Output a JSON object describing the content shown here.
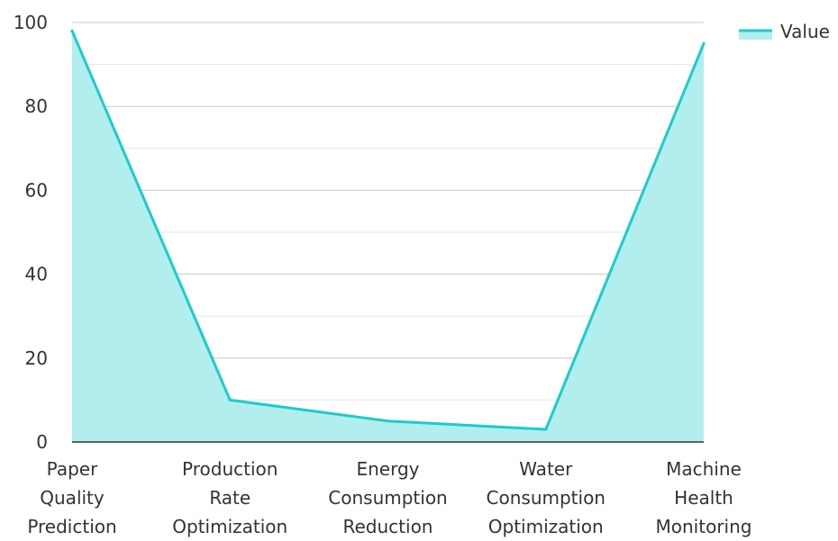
{
  "chart_data": {
    "type": "area",
    "title": "",
    "xlabel": "",
    "ylabel": "",
    "categories": [
      [
        "Paper",
        "Quality",
        "Prediction"
      ],
      [
        "Production",
        "Rate",
        "Optimization"
      ],
      [
        "Energy",
        "Consumption",
        "Reduction"
      ],
      [
        "Water",
        "Consumption",
        "Optimization"
      ],
      [
        "Machine",
        "Health",
        "Monitoring"
      ]
    ],
    "series": [
      {
        "name": "Value",
        "values": [
          98,
          10,
          5,
          3,
          95
        ],
        "color": "#1ecbcb",
        "fill": "#b2eeee"
      }
    ],
    "ylim": [
      0,
      100
    ],
    "yticks": [
      0,
      20,
      40,
      60,
      80,
      100
    ],
    "grid": true,
    "legend": "top-right"
  }
}
